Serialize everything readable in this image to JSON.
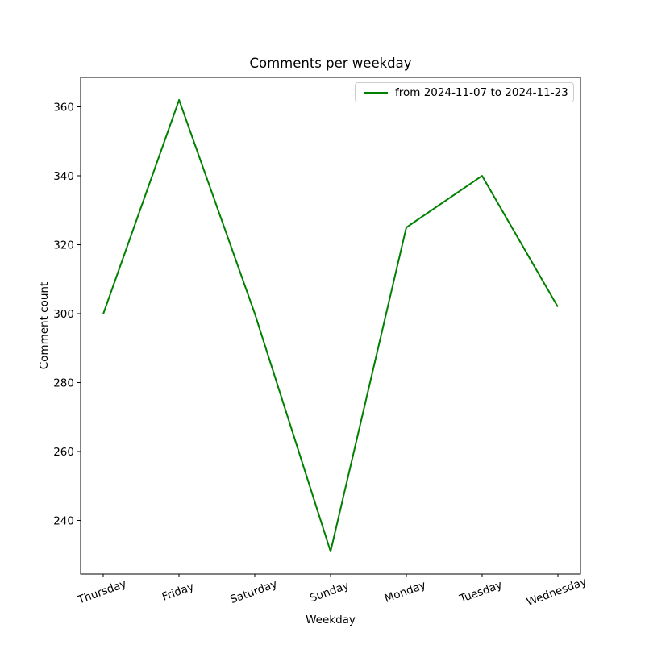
{
  "figure": {
    "title": "Comments per weekday",
    "xlabel": "Weekday",
    "ylabel": "Comment count",
    "background_color": "#ffffff",
    "spine_color": "#000000"
  },
  "legend": {
    "label": "from 2024-11-07 to 2024-11-23",
    "line_color": "#008000",
    "position": "upper right"
  },
  "chart_data": {
    "type": "line",
    "title": "Comments per weekday",
    "xlabel": "Weekday",
    "ylabel": "Comment count",
    "categories": [
      "Thursday",
      "Friday",
      "Saturday",
      "Sunday",
      "Monday",
      "Tuesday",
      "Wednesday"
    ],
    "series": [
      {
        "name": "from 2024-11-07 to 2024-11-23",
        "values": [
          300,
          362,
          300,
          231,
          325,
          340,
          302
        ],
        "color": "#008000",
        "line_width": 2
      }
    ],
    "yticks": [
      240,
      260,
      280,
      300,
      320,
      340,
      360
    ],
    "ylim": [
      224.45,
      368.55
    ],
    "xlim": [
      -0.3,
      6.3
    ],
    "xtick_rotation": -20,
    "grid": false,
    "legend_position": "upper right"
  }
}
